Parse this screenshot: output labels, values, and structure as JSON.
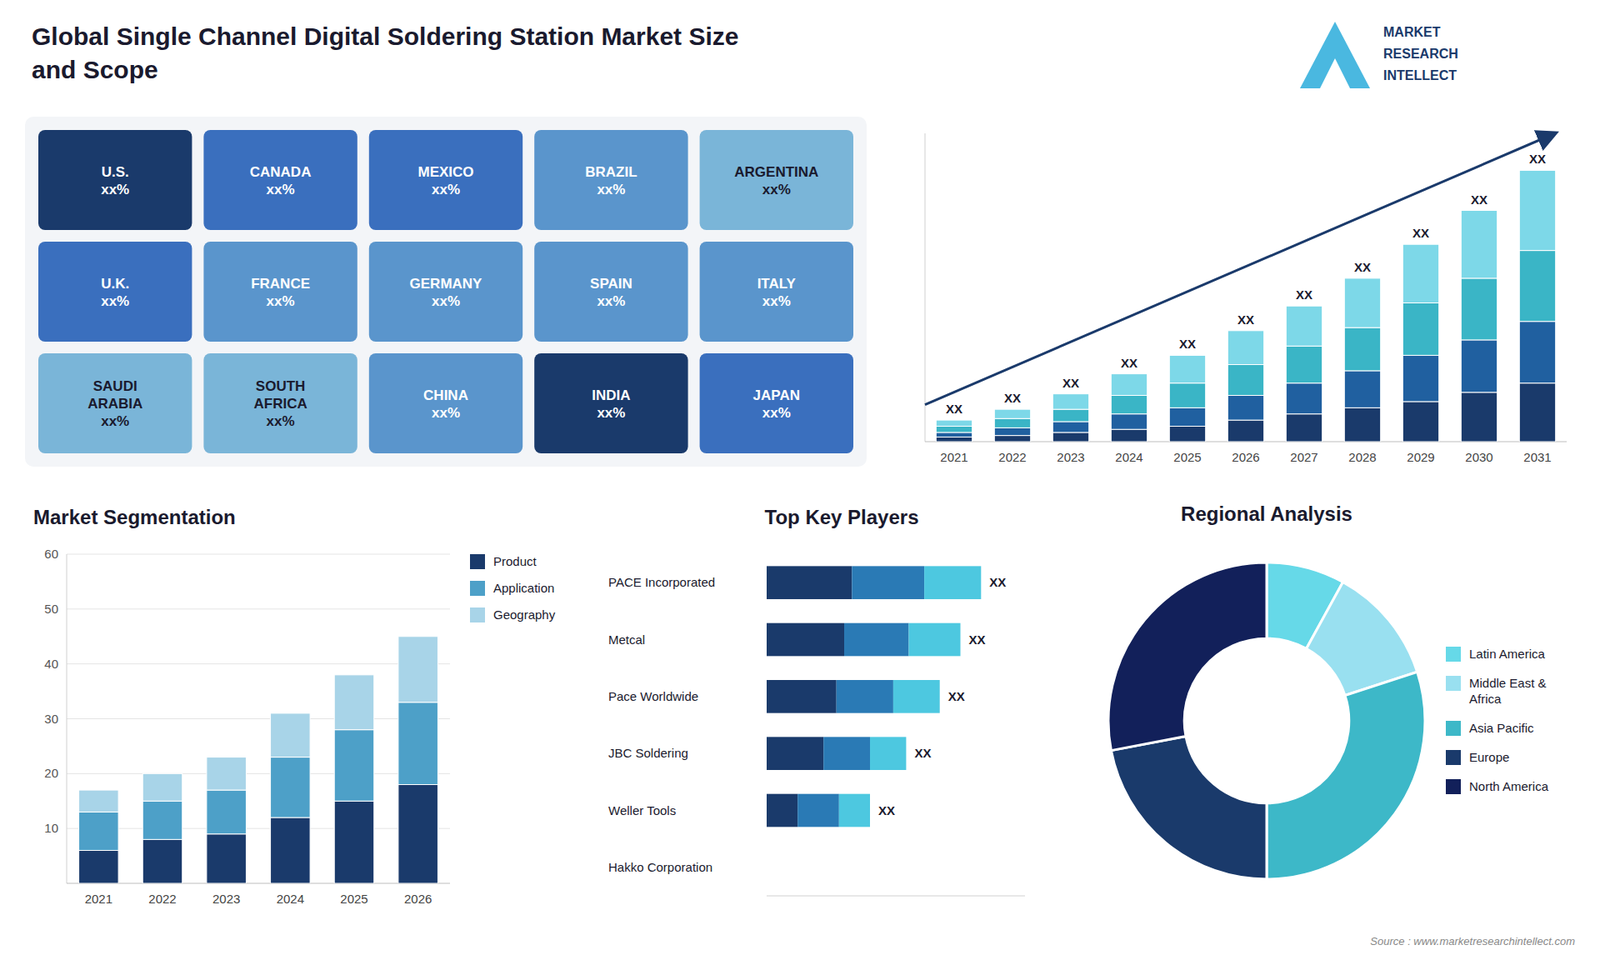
{
  "chart_data": [
    {
      "type": "map",
      "annotations": [
        "U.S.\nxx%",
        "CANADA\nxx%",
        "MEXICO\nxx%",
        "BRAZIL\nxx%",
        "ARGENTINA\nxx%",
        "U.K.\nxx%",
        "FRANCE\nxx%",
        "GERMANY\nxx%",
        "SPAIN\nxx%",
        "ITALY\nxx%",
        "SAUDI\nARABIA\nxx%",
        "SOUTH\nAFRICA\nxx%",
        "CHINA\nxx%",
        "INDIA\nxx%",
        "JAPAN\nxx%"
      ],
      "colors": [
        "#1a3a6b",
        "#3a6fbe",
        "#3a6fbe",
        "#5a95cc",
        "#7ab5d8",
        "#3a6fbe",
        "#5a95cc",
        "#5a95cc",
        "#5a95cc",
        "#5a95cc",
        "#7ab5d8",
        "#7ab5d8",
        "#5a95cc",
        "#1a3a6b",
        "#3a6fbe"
      ]
    },
    {
      "type": "bar",
      "title": "Global Single Channel Digital Soldering Station Market Size\nand Scope",
      "subtitle": "MARKET\nRESEARCH\nINTELLECT",
      "categories": [
        "2021",
        "2022",
        "2023",
        "2024",
        "2025",
        "2026",
        "2027",
        "2028",
        "2029",
        "2030",
        "2031"
      ],
      "series": [
        {
          "color": "#1a3a6b",
          "values": [
            1.5,
            2,
            3,
            4,
            5,
            7,
            9,
            11,
            13,
            16,
            19
          ]
        },
        {
          "color": "#2060a0",
          "values": [
            1.5,
            2.5,
            3.5,
            5,
            6,
            8,
            10,
            12,
            15,
            17,
            20
          ]
        },
        {
          "color": "#3ab5c6",
          "values": [
            2,
            3,
            4,
            6,
            8,
            10,
            12,
            14,
            17,
            20,
            23
          ]
        },
        {
          "color": "#7dd8e8",
          "values": [
            2,
            3,
            5,
            7,
            9,
            11,
            13,
            16,
            19,
            22,
            26
          ]
        }
      ],
      "stacked": true,
      "ylim": [
        0,
        100
      ],
      "yticks": [],
      "tick_labels": "x",
      "annotations": [
        "XX",
        "XX",
        "XX",
        "XX",
        "XX",
        "XX",
        "XX",
        "XX",
        "XX",
        "XX",
        "XX"
      ]
    },
    {
      "type": "bar",
      "title": "Market Segmentation",
      "categories": [
        "2021",
        "2022",
        "2023",
        "2024",
        "2025",
        "2026"
      ],
      "series": [
        {
          "name": "Product",
          "color": "#1a3a6b",
          "values": [
            6,
            8,
            9,
            12,
            15,
            18
          ]
        },
        {
          "name": "Application",
          "color": "#4da0c8",
          "values": [
            7,
            7,
            8,
            11,
            13,
            15
          ]
        },
        {
          "name": "Geography",
          "color": "#a8d4e8",
          "values": [
            4,
            5,
            6,
            8,
            10,
            12
          ]
        }
      ],
      "stacked": true,
      "ylim": [
        0,
        60
      ],
      "yticks": [
        10,
        20,
        30,
        40,
        50,
        60
      ],
      "grid": true,
      "legend": "right"
    },
    {
      "type": "bar",
      "orientation": "horizontal",
      "title": "Top Key Players",
      "categories": [
        "PACE Incorporated",
        "Metcal",
        "Pace Worldwide",
        "JBC Soldering",
        "Weller Tools",
        "Hakko Corporation"
      ],
      "series": [
        {
          "color": "#1a3a6b",
          "values": [
            33,
            30,
            27,
            22,
            12,
            0
          ]
        },
        {
          "color": "#2a7ab5",
          "values": [
            28,
            25,
            22,
            18,
            16,
            0
          ]
        },
        {
          "color": "#4dc8e0",
          "values": [
            22,
            20,
            18,
            14,
            12,
            0
          ]
        }
      ],
      "stacked": true,
      "xlim": [
        0,
        100
      ],
      "xticks": [],
      "tick_labels": "y",
      "annotations": [
        "XX",
        "XX",
        "XX",
        "XX",
        "XX"
      ]
    },
    {
      "type": "pie",
      "title": "Regional Analysis",
      "categories": [
        "Latin America",
        "Middle East &\nAfrica",
        "Asia Pacific",
        "Europe",
        "North America"
      ],
      "values": [
        8,
        12,
        30,
        22,
        28
      ],
      "colors": [
        "#66d9e8",
        "#99e0f0",
        "#3db8c8",
        "#1a3a6b",
        "#12205a"
      ],
      "legend": "right",
      "annotations": [
        "Source : www.marketresearchintellect.com"
      ]
    }
  ]
}
